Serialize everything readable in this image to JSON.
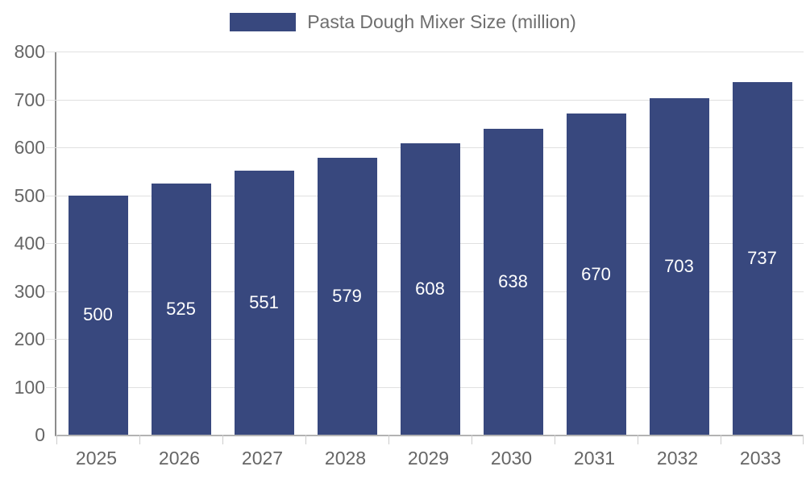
{
  "legend": {
    "label": "Pasta Dough Mixer Size (million)"
  },
  "chart_data": {
    "type": "bar",
    "title": "Pasta Dough Mixer Size (million)",
    "series_name": "Pasta Dough Mixer Size (million)",
    "categories": [
      "2025",
      "2026",
      "2027",
      "2028",
      "2029",
      "2030",
      "2031",
      "2032",
      "2033"
    ],
    "values": [
      500,
      525,
      551,
      579,
      608,
      638,
      670,
      703,
      737
    ],
    "xlabel": "",
    "ylabel": "",
    "ylim": [
      0,
      800
    ],
    "yticks": [
      0,
      100,
      200,
      300,
      400,
      500,
      600,
      700,
      800
    ],
    "grid": true,
    "legend_position": "top-center",
    "bar_labels_shown": true
  },
  "colors": {
    "bar": "#38487e",
    "bar_label": "#ffffff",
    "axis_text": "#666666",
    "legend_text": "#6e6e6e",
    "gridline": "#e0e0e0",
    "axis_line_left": "#8c8c8c",
    "axis_line_bottom": "#b3b3b3",
    "background": "#ffffff"
  }
}
